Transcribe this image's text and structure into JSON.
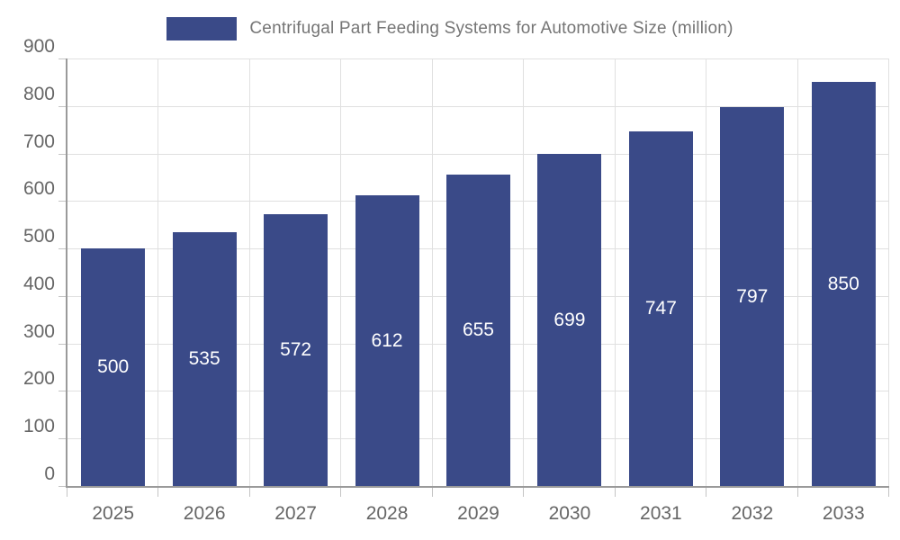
{
  "legend": {
    "label": "Centrifugal Part Feeding Systems for Automotive Size (million)"
  },
  "chart_data": {
    "type": "bar",
    "title": "Centrifugal Part Feeding Systems for Automotive Size (million)",
    "categories": [
      "2025",
      "2026",
      "2027",
      "2028",
      "2029",
      "2030",
      "2031",
      "2032",
      "2033"
    ],
    "values": [
      500,
      535,
      572,
      612,
      655,
      699,
      747,
      797,
      850
    ],
    "xlabel": "",
    "ylabel": "",
    "ylim": [
      0,
      900
    ],
    "ytick_interval": 100,
    "ytick_labels": [
      "0",
      "100",
      "200",
      "300",
      "400",
      "500",
      "600",
      "700",
      "800",
      "900"
    ],
    "grid": true,
    "legend_position": "top",
    "colors": {
      "bar": "#3a4a88",
      "value_label": "#ffffff",
      "axis_text": "#666666",
      "title_text": "#757575",
      "gridline": "#e0e0e0",
      "axis_line": "#9a9a9a"
    }
  }
}
